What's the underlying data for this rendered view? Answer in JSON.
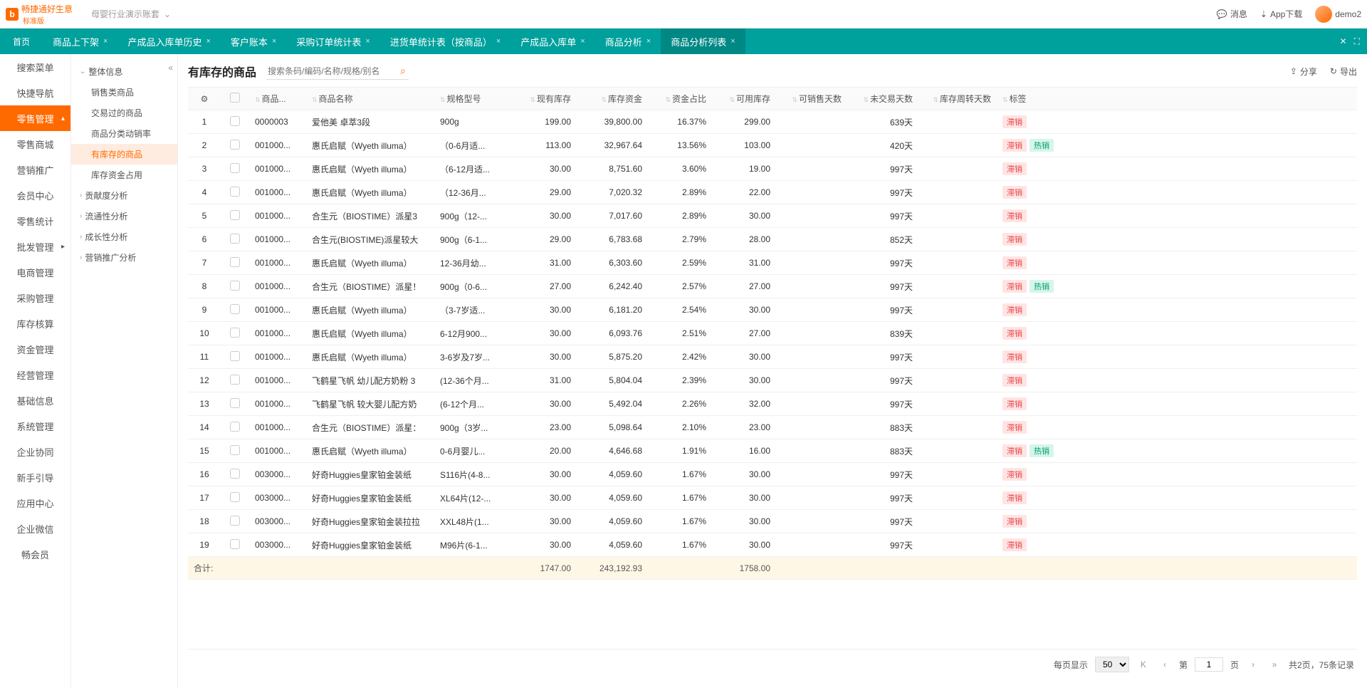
{
  "header": {
    "logo_text": "畅捷通好生意",
    "logo_sub": "标准版",
    "account": "母婴行业演示账套",
    "msg": "消息",
    "app_download": "App下载",
    "user": "demo2"
  },
  "tabs": {
    "home": "首页",
    "items": [
      {
        "label": "商品上下架"
      },
      {
        "label": "产成品入库单历史"
      },
      {
        "label": "客户账本"
      },
      {
        "label": "采购订单统计表"
      },
      {
        "label": "进货单统计表（按商品）"
      },
      {
        "label": "产成品入库单"
      },
      {
        "label": "商品分析"
      },
      {
        "label": "商品分析列表"
      }
    ],
    "active_index": 7
  },
  "left_nav": {
    "items": [
      "搜索菜单",
      "快捷导航",
      "零售管理",
      "零售商城",
      "营销推广",
      "会员中心",
      "零售统计",
      "批发管理",
      "电商管理",
      "采购管理",
      "库存核算",
      "资金管理",
      "经营管理",
      "基础信息",
      "系统管理",
      "企业协同",
      "新手引导",
      "应用中心",
      "企业微信",
      "畅会员"
    ],
    "active_index": 2,
    "expandable": {
      "2": true,
      "7": true
    }
  },
  "sub_nav": {
    "group": "整体信息",
    "items": [
      "销售类商品",
      "交易过的商品",
      "商品分类动销率",
      "有库存的商品",
      "库存资金占用"
    ],
    "active_index": 3,
    "groups2": [
      "贡献度分析",
      "流通性分析",
      "成长性分析",
      "营销推广分析"
    ]
  },
  "content": {
    "title": "有库存的商品",
    "search_placeholder": "搜索条码/编码/名称/规格/别名",
    "share": "分享",
    "export": "导出"
  },
  "table": {
    "columns": [
      "",
      "",
      "商品...",
      "商品名称",
      "规格型号",
      "现有库存",
      "库存资金",
      "资金占比",
      "可用库存",
      "可销售天数",
      "未交易天数",
      "库存周转天数",
      "标签"
    ],
    "rows": [
      {
        "idx": "1",
        "code": "0000003",
        "name": "爱他美 卓萃3段",
        "spec": "900g",
        "stock": "199.00",
        "fund": "39,800.00",
        "pct": "16.37%",
        "avail": "299.00",
        "sell_days": "",
        "no_trade": "639天",
        "turnover": "",
        "tags": [
          "滞销"
        ]
      },
      {
        "idx": "2",
        "code": "001000...",
        "name": "惠氏启赋（Wyeth illuma）",
        "spec": "（0-6月适...",
        "stock": "113.00",
        "fund": "32,967.64",
        "pct": "13.56%",
        "avail": "103.00",
        "sell_days": "",
        "no_trade": "420天",
        "turnover": "",
        "tags": [
          "滞销",
          "热销"
        ]
      },
      {
        "idx": "3",
        "code": "001000...",
        "name": "惠氏启赋（Wyeth illuma）",
        "spec": "（6-12月适...",
        "stock": "30.00",
        "fund": "8,751.60",
        "pct": "3.60%",
        "avail": "19.00",
        "sell_days": "",
        "no_trade": "997天",
        "turnover": "",
        "tags": [
          "滞销"
        ]
      },
      {
        "idx": "4",
        "code": "001000...",
        "name": "惠氏启赋（Wyeth illuma）",
        "spec": "（12-36月...",
        "stock": "29.00",
        "fund": "7,020.32",
        "pct": "2.89%",
        "avail": "22.00",
        "sell_days": "",
        "no_trade": "997天",
        "turnover": "",
        "tags": [
          "滞销"
        ]
      },
      {
        "idx": "5",
        "code": "001000...",
        "name": "合生元（BIOSTIME）派星3",
        "spec": "900g（12-...",
        "stock": "30.00",
        "fund": "7,017.60",
        "pct": "2.89%",
        "avail": "30.00",
        "sell_days": "",
        "no_trade": "997天",
        "turnover": "",
        "tags": [
          "滞销"
        ]
      },
      {
        "idx": "6",
        "code": "001000...",
        "name": "合生元(BIOSTIME)派星较大",
        "spec": "900g（6-1...",
        "stock": "29.00",
        "fund": "6,783.68",
        "pct": "2.79%",
        "avail": "28.00",
        "sell_days": "",
        "no_trade": "852天",
        "turnover": "",
        "tags": [
          "滞销"
        ]
      },
      {
        "idx": "7",
        "code": "001000...",
        "name": "惠氏启赋（Wyeth illuma）",
        "spec": "12-36月幼...",
        "stock": "31.00",
        "fund": "6,303.60",
        "pct": "2.59%",
        "avail": "31.00",
        "sell_days": "",
        "no_trade": "997天",
        "turnover": "",
        "tags": [
          "滞销"
        ]
      },
      {
        "idx": "8",
        "code": "001000...",
        "name": "合生元（BIOSTIME）派星！",
        "spec": "900g（0-6...",
        "stock": "27.00",
        "fund": "6,242.40",
        "pct": "2.57%",
        "avail": "27.00",
        "sell_days": "",
        "no_trade": "997天",
        "turnover": "",
        "tags": [
          "滞销",
          "热销"
        ]
      },
      {
        "idx": "9",
        "code": "001000...",
        "name": "惠氏启赋（Wyeth illuma）",
        "spec": "（3-7岁适...",
        "stock": "30.00",
        "fund": "6,181.20",
        "pct": "2.54%",
        "avail": "30.00",
        "sell_days": "",
        "no_trade": "997天",
        "turnover": "",
        "tags": [
          "滞销"
        ]
      },
      {
        "idx": "10",
        "code": "001000...",
        "name": "惠氏启赋（Wyeth illuma）",
        "spec": "6-12月900...",
        "stock": "30.00",
        "fund": "6,093.76",
        "pct": "2.51%",
        "avail": "27.00",
        "sell_days": "",
        "no_trade": "839天",
        "turnover": "",
        "tags": [
          "滞销"
        ]
      },
      {
        "idx": "11",
        "code": "001000...",
        "name": "惠氏启赋（Wyeth illuma）",
        "spec": "3-6岁及7岁...",
        "stock": "30.00",
        "fund": "5,875.20",
        "pct": "2.42%",
        "avail": "30.00",
        "sell_days": "",
        "no_trade": "997天",
        "turnover": "",
        "tags": [
          "滞销"
        ]
      },
      {
        "idx": "12",
        "code": "001000...",
        "name": "飞鹤星飞帆 幼儿配方奶粉 3",
        "spec": "(12-36个月...",
        "stock": "31.00",
        "fund": "5,804.04",
        "pct": "2.39%",
        "avail": "30.00",
        "sell_days": "",
        "no_trade": "997天",
        "turnover": "",
        "tags": [
          "滞销"
        ]
      },
      {
        "idx": "13",
        "code": "001000...",
        "name": "飞鹤星飞帆 较大婴儿配方奶",
        "spec": "(6-12个月...",
        "stock": "30.00",
        "fund": "5,492.04",
        "pct": "2.26%",
        "avail": "32.00",
        "sell_days": "",
        "no_trade": "997天",
        "turnover": "",
        "tags": [
          "滞销"
        ]
      },
      {
        "idx": "14",
        "code": "001000...",
        "name": "合生元（BIOSTIME）派星：",
        "spec": "900g（3岁...",
        "stock": "23.00",
        "fund": "5,098.64",
        "pct": "2.10%",
        "avail": "23.00",
        "sell_days": "",
        "no_trade": "883天",
        "turnover": "",
        "tags": [
          "滞销"
        ]
      },
      {
        "idx": "15",
        "code": "001000...",
        "name": "惠氏启赋（Wyeth illuma）",
        "spec": "0-6月婴儿...",
        "stock": "20.00",
        "fund": "4,646.68",
        "pct": "1.91%",
        "avail": "16.00",
        "sell_days": "",
        "no_trade": "883天",
        "turnover": "",
        "tags": [
          "滞销",
          "热销"
        ]
      },
      {
        "idx": "16",
        "code": "003000...",
        "name": "好奇Huggies皇家铂金装纸",
        "spec": "S116片(4-8...",
        "stock": "30.00",
        "fund": "4,059.60",
        "pct": "1.67%",
        "avail": "30.00",
        "sell_days": "",
        "no_trade": "997天",
        "turnover": "",
        "tags": [
          "滞销"
        ]
      },
      {
        "idx": "17",
        "code": "003000...",
        "name": "好奇Huggies皇家铂金装纸",
        "spec": "XL64片(12-...",
        "stock": "30.00",
        "fund": "4,059.60",
        "pct": "1.67%",
        "avail": "30.00",
        "sell_days": "",
        "no_trade": "997天",
        "turnover": "",
        "tags": [
          "滞销"
        ]
      },
      {
        "idx": "18",
        "code": "003000...",
        "name": "好奇Huggies皇家铂金装拉拉",
        "spec": "XXL48片(1...",
        "stock": "30.00",
        "fund": "4,059.60",
        "pct": "1.67%",
        "avail": "30.00",
        "sell_days": "",
        "no_trade": "997天",
        "turnover": "",
        "tags": [
          "滞销"
        ]
      },
      {
        "idx": "19",
        "code": "003000...",
        "name": "好奇Huggies皇家铂金装纸",
        "spec": "M96片(6-1...",
        "stock": "30.00",
        "fund": "4,059.60",
        "pct": "1.67%",
        "avail": "30.00",
        "sell_days": "",
        "no_trade": "997天",
        "turnover": "",
        "tags": [
          "滞销"
        ]
      }
    ],
    "footer": {
      "label": "合计:",
      "stock": "1747.00",
      "fund": "243,192.93",
      "avail": "1758.00"
    }
  },
  "pager": {
    "page_size_label": "每页显示",
    "page_size": "50",
    "page_label_pre": "第",
    "page": "1",
    "page_label_post": "页",
    "total": "共2页，75条记录"
  }
}
